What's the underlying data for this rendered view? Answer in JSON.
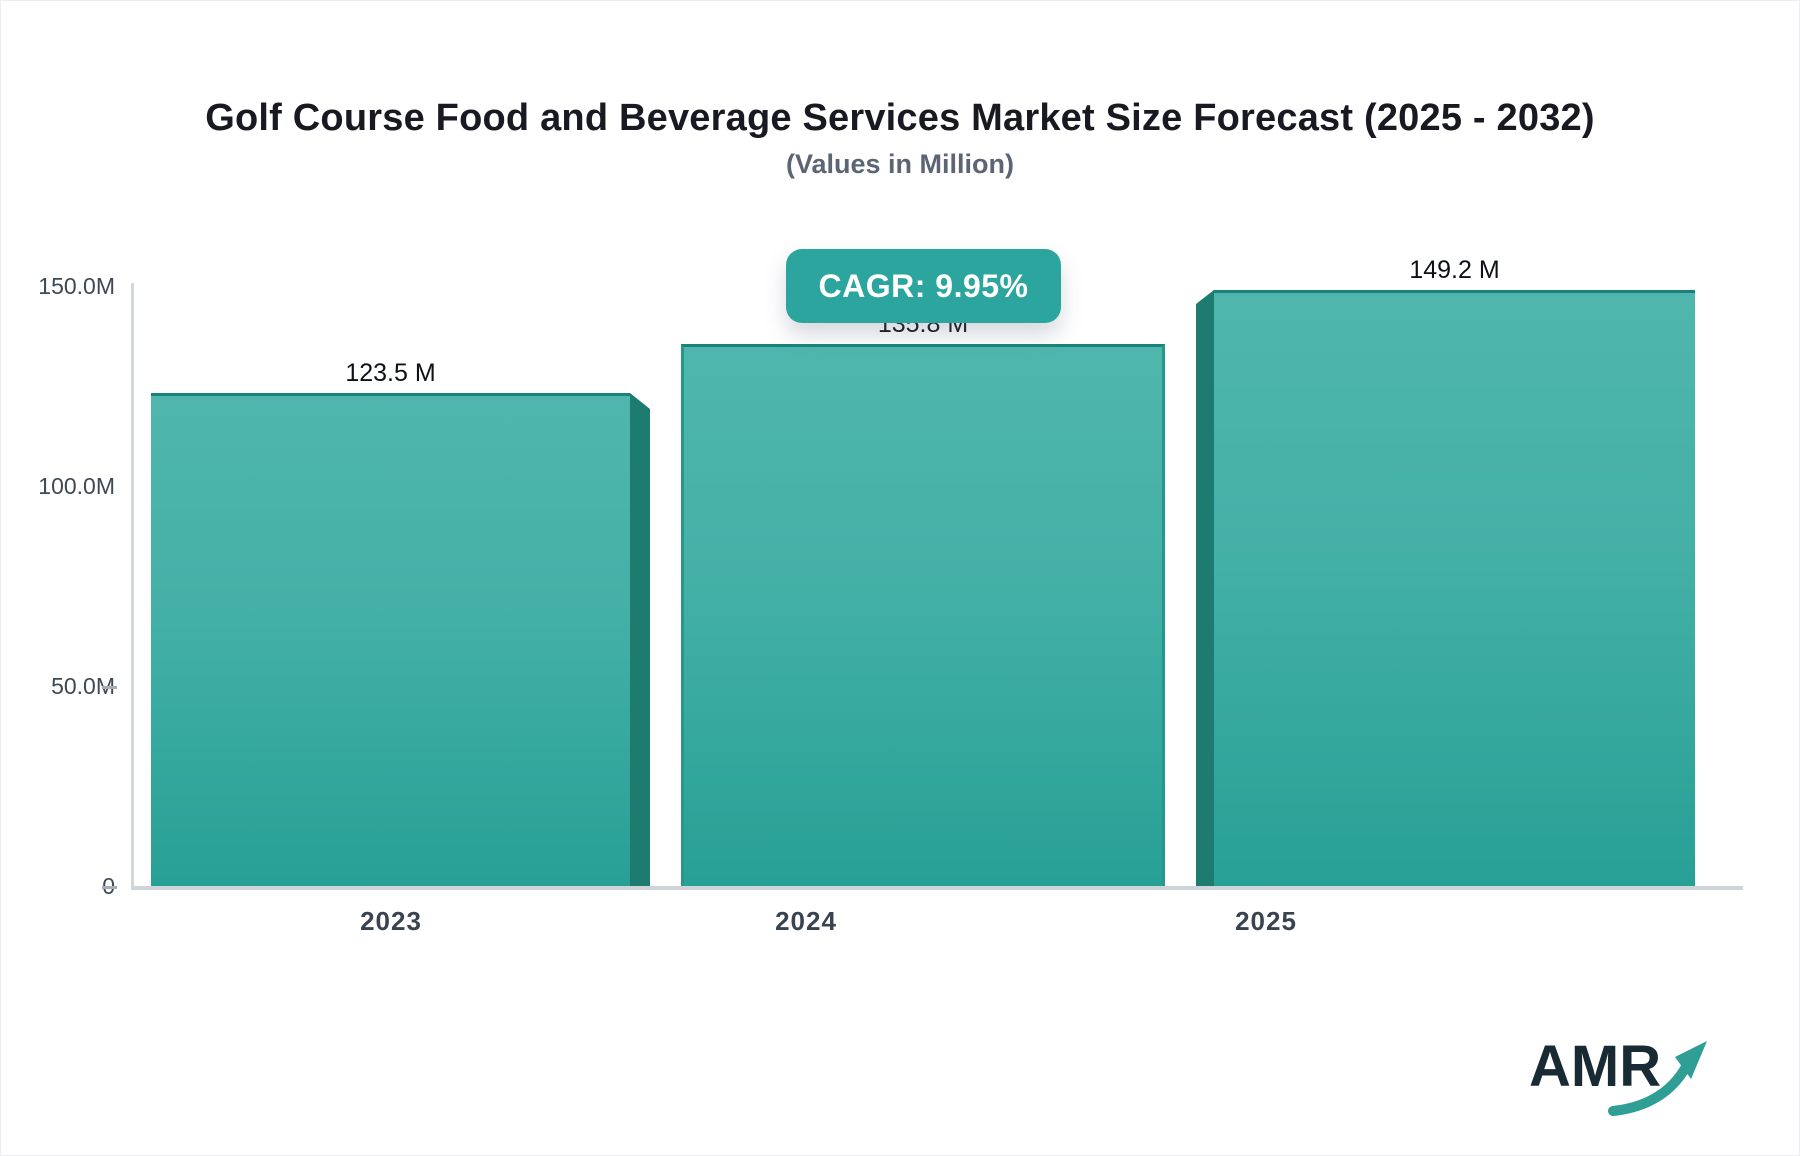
{
  "header": {
    "title": "Golf Course Food and Beverage Services Market Size Forecast (2025 - 2032)",
    "subtitle": "(Values in Million)"
  },
  "cagr_badge": {
    "label": "CAGR: 9.95%"
  },
  "logo": {
    "text": "AMR",
    "arrow_icon": "trend-up-arrow-icon"
  },
  "colors": {
    "bar_top": "#50b6ad",
    "bar_bottom": "#27a095",
    "bar_side_dark": "#1e7b70",
    "badge_teal": "#2ba59d",
    "axis_gray": "#d3d6dc",
    "title_text": "#191922",
    "subtitle_text": "#5b6573",
    "logo_text": "#182a33",
    "logo_arrow_teal": "#2f9e95"
  },
  "chart_data": {
    "type": "bar",
    "title": "Golf Course Food and Beverage Services Market Size Forecast (2025 - 2032)",
    "subtitle": "(Values in Million)",
    "categories": [
      "2023",
      "2024",
      "2025"
    ],
    "values": [
      123.5,
      135.8,
      149.2
    ],
    "value_labels": [
      "123.5 M",
      "135.8 M",
      "149.2 M"
    ],
    "unit": "Million",
    "cagr": "9.95%",
    "xlabel": "",
    "ylabel": "",
    "ylim": [
      0,
      155
    ],
    "grid": false,
    "legend": "none",
    "yticks": [
      {
        "label": "150.0M",
        "value": 150
      },
      {
        "label": "100.0M",
        "value": 100
      },
      {
        "label": "50.0M",
        "value": 50
      },
      {
        "label": "0",
        "value": 0
      }
    ]
  }
}
